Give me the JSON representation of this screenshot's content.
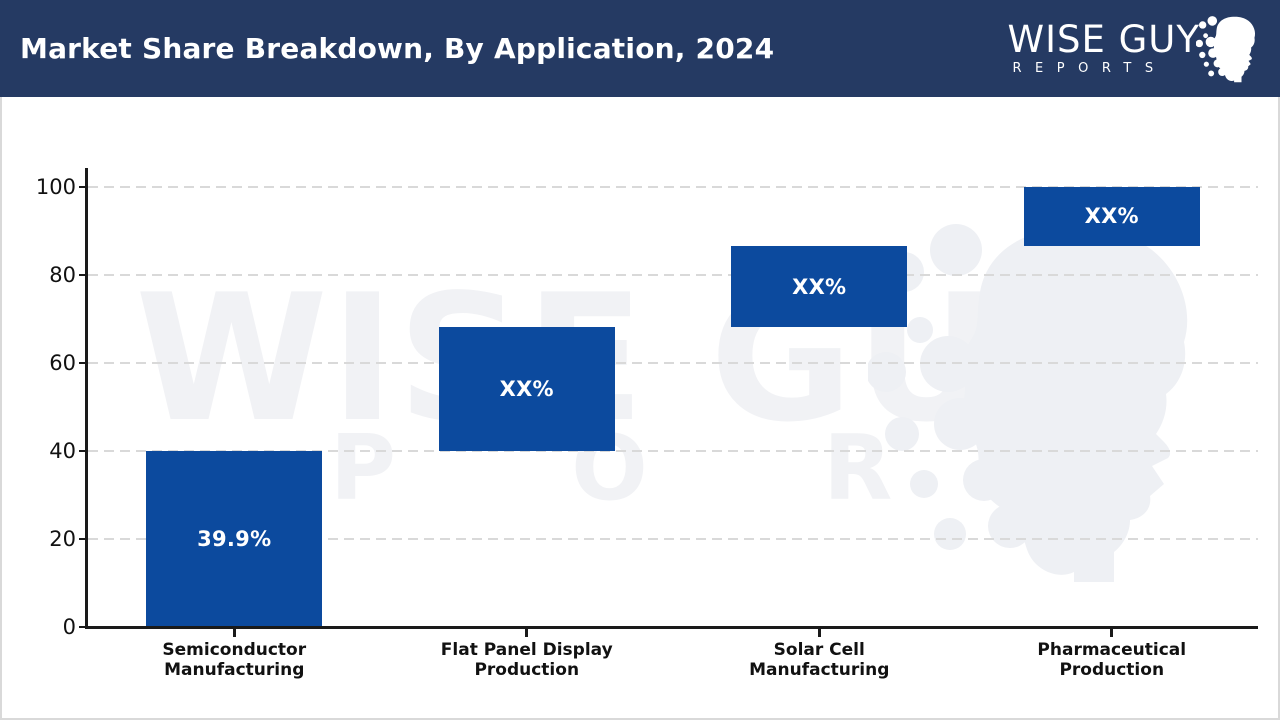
{
  "colors": {
    "header_bg": "#253a63",
    "bar_fill": "#0c4a9e",
    "gridline_color": "#d9d9d9",
    "frame_border": "#d9d9d9",
    "watermark_color": "#f1f2f5",
    "axis_color": "#1a1a1a",
    "title_text_color": "#ffffff",
    "bar_label_color": "#ffffff"
  },
  "header": {
    "title": "Market Share Breakdown, By Application, 2024",
    "logo": {
      "line1": "WISE GUY",
      "line2": "REPORTS"
    }
  },
  "watermark": {
    "line1": "WISE GUY",
    "line2": "P O R T S"
  },
  "chart_data": {
    "type": "bar",
    "subtype": "waterfall-floating-segments",
    "title": "Market Share Breakdown, By Application, 2024",
    "xlabel": "",
    "ylabel": "",
    "ylim": [
      0,
      104
    ],
    "yticks": [
      0,
      20,
      40,
      60,
      80,
      100
    ],
    "grid": "dashed-horizontal",
    "legend": "none",
    "categories": [
      "Semiconductor Manufacturing",
      "Flat Panel Display Production",
      "Solar Cell Manufacturing",
      "Pharmaceutical Production"
    ],
    "category_label_lines": [
      [
        "Semiconductor",
        "Manufacturing"
      ],
      [
        "Flat Panel Display",
        "Production"
      ],
      [
        "Solar Cell",
        "Manufacturing"
      ],
      [
        "Pharmaceutical",
        "Production"
      ]
    ],
    "bars": [
      {
        "category": "Semiconductor Manufacturing",
        "segment_start": 0,
        "segment_end": 39.9,
        "label": "39.9%"
      },
      {
        "category": "Flat Panel Display Production",
        "segment_start": 40,
        "segment_end": 68,
        "label": "XX%"
      },
      {
        "category": "Solar Cell Manufacturing",
        "segment_start": 68,
        "segment_end": 86.5,
        "label": "XX%"
      },
      {
        "category": "Pharmaceutical Production",
        "segment_start": 86.5,
        "segment_end": 100,
        "label": "XX%"
      }
    ]
  }
}
